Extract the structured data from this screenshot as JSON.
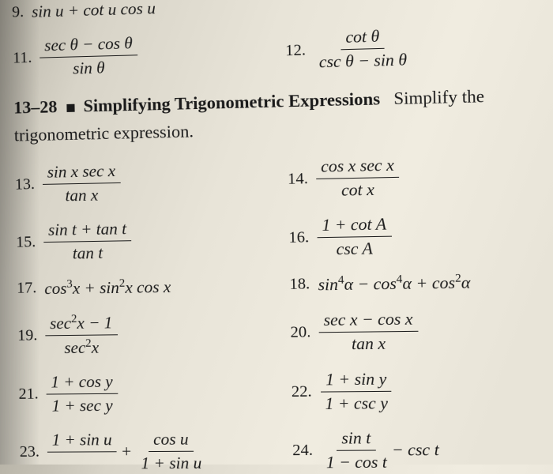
{
  "problems": {
    "p9": {
      "num": "9.",
      "expr": "sin u + cot u cos u"
    },
    "p11": {
      "num": "11.",
      "top": "sec θ − cos θ",
      "bot": "sin θ"
    },
    "p12": {
      "num": "12.",
      "top": "cot θ",
      "bot": "csc θ − sin θ"
    },
    "p13": {
      "num": "13.",
      "top": "sin x sec x",
      "bot": "tan x"
    },
    "p14": {
      "num": "14.",
      "top": "cos x sec x",
      "bot": "cot x"
    },
    "p15": {
      "num": "15.",
      "top": "sin t + tan t",
      "bot": "tan t"
    },
    "p16": {
      "num": "16.",
      "top": "1 + cot A",
      "bot": "csc A"
    },
    "p17": {
      "num": "17.",
      "expr_html": "cos<sup>3</sup>x + sin<sup>2</sup>x cos x"
    },
    "p18": {
      "num": "18.",
      "expr_html": "sin<sup>4</sup>α − cos<sup>4</sup>α + cos<sup>2</sup>α"
    },
    "p19": {
      "num": "19.",
      "top_html": "sec<sup>2</sup>x − 1",
      "bot_html": "sec<sup>2</sup>x"
    },
    "p20": {
      "num": "20.",
      "top": "sec x − cos x",
      "bot": "tan x"
    },
    "p21": {
      "num": "21.",
      "top": "1 + cos y",
      "bot": "1 + sec y"
    },
    "p22": {
      "num": "22.",
      "top": "1 + sin y",
      "bot": "1 + csc y"
    },
    "p23": {
      "num": "23.",
      "top1": "1 + sin u",
      "top2": "cos u",
      "bot2": "1 + sin u",
      "plus": "+"
    },
    "p24": {
      "num": "24.",
      "top": "sin t",
      "bot": "1 − cos t",
      "tail": " − csc t"
    }
  },
  "section": {
    "range": "13–28",
    "title": "Simplifying Trigonometric Expressions",
    "tail": "Simplify the",
    "sub": "trigonometric expression."
  }
}
